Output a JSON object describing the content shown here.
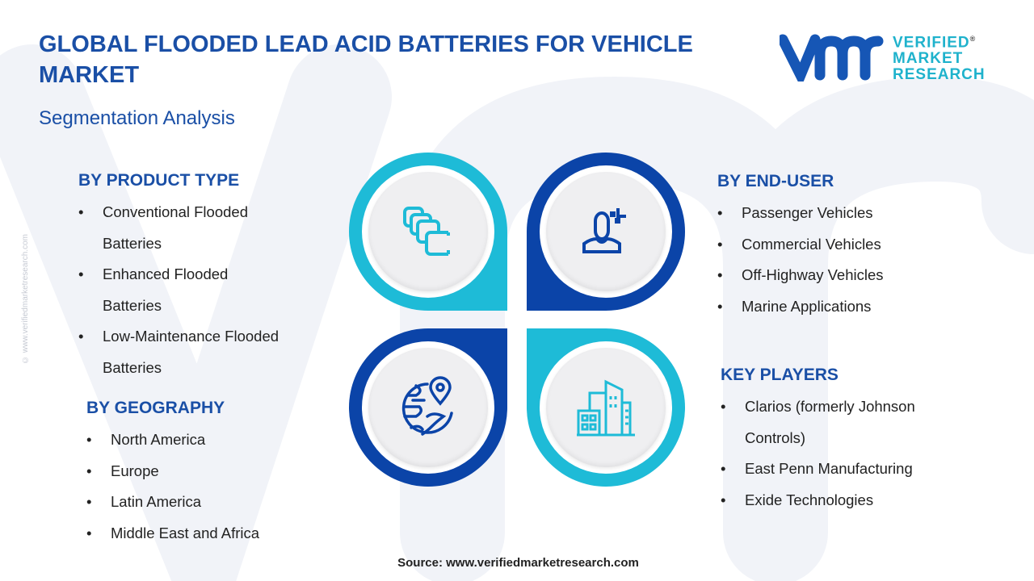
{
  "header": {
    "title": "GLOBAL FLOODED LEAD ACID BATTERIES FOR VEHICLE MARKET",
    "subtitle": "Segmentation Analysis"
  },
  "logo": {
    "mark": "vmr",
    "line1": "VERIFIED",
    "line2": "MARKET",
    "line3": "RESEARCH",
    "registered": "®"
  },
  "side_text": "© www.verifiedmarketresearch.com",
  "colors": {
    "title": "#1a4fa6",
    "cyan": "#1ebbd7",
    "dark_blue": "#0b44a8"
  },
  "sections": {
    "product_type": {
      "title": "BY PRODUCT TYPE",
      "items": [
        "Conventional Flooded Batteries",
        "Enhanced Flooded Batteries",
        "Low-Maintenance Flooded Batteries"
      ]
    },
    "geography": {
      "title": "BY GEOGRAPHY",
      "items": [
        "North America",
        "Europe",
        "Latin America",
        "Middle East and Africa"
      ]
    },
    "end_user": {
      "title": "BY END-USER",
      "items": [
        "Passenger Vehicles",
        "Commercial Vehicles",
        "Off-Highway Vehicles",
        "Marine Applications"
      ]
    },
    "key_players": {
      "title": "KEY PLAYERS",
      "items": [
        "Clarios (formerly Johnson Controls)",
        "East Penn Manufacturing",
        "Exide Technologies"
      ]
    }
  },
  "icons": [
    "layers-icon",
    "user-icon",
    "globe-pin-icon",
    "buildings-icon"
  ],
  "footer": {
    "source": "Source: www.verifiedmarketresearch.com"
  }
}
